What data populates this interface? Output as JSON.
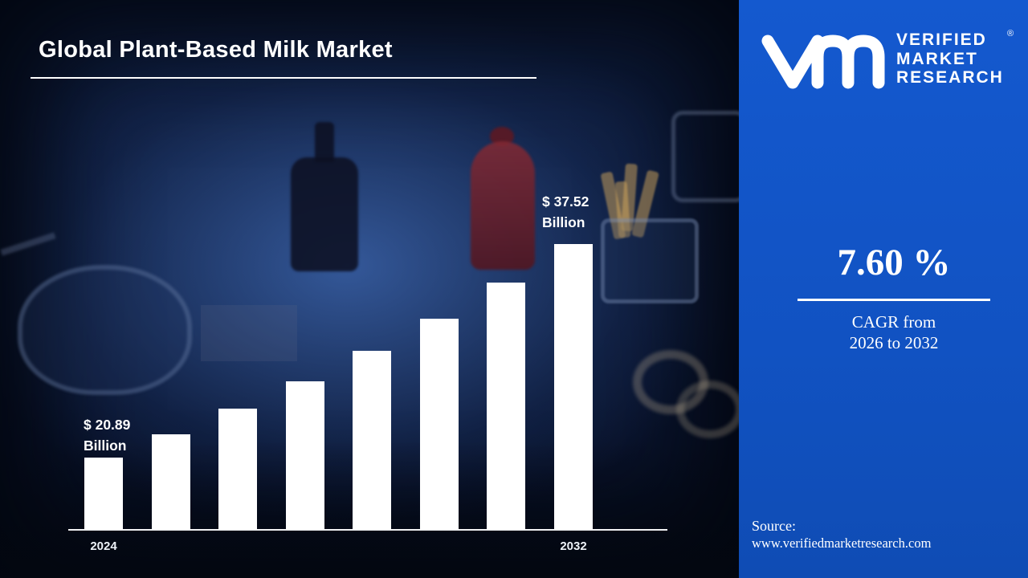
{
  "title": "Global Plant-Based Milk Market",
  "brand": {
    "logo_icon": "vmr-monogram",
    "logo_color": "#ffffff",
    "name_lines": [
      "VERIFIED",
      "MARKET",
      "RESEARCH"
    ],
    "registered_mark": "®"
  },
  "panel": {
    "background_color": "#1152c2",
    "cagr_value": "7.60 %",
    "cagr_caption_line1": "CAGR from",
    "cagr_caption_line2": "2026 to 2032",
    "source_label": "Source:",
    "source_url": "www.verifiedmarketresearch.com"
  },
  "chart_data": {
    "type": "bar",
    "title": "Global Plant-Based Milk Market",
    "unit": "USD Billion",
    "bar_color": "#ffffff",
    "bar_count": 8,
    "x_range": "2024 to 2032",
    "x_tick_labels": [
      "2024",
      "2032"
    ],
    "values": [
      20.89,
      22.71,
      24.69,
      26.85,
      29.19,
      31.73,
      34.51,
      37.52
    ],
    "value_labels": [
      {
        "bar_index": 0,
        "line1": "$ 20.89",
        "line2": "Billion",
        "value": 20.89
      },
      {
        "bar_index": 7,
        "line1": "$ 37.52",
        "line2": "Billion",
        "value": 37.52
      }
    ],
    "xlabel": "",
    "ylabel": "",
    "grid": false,
    "legend": false,
    "baseline_axis": true
  }
}
